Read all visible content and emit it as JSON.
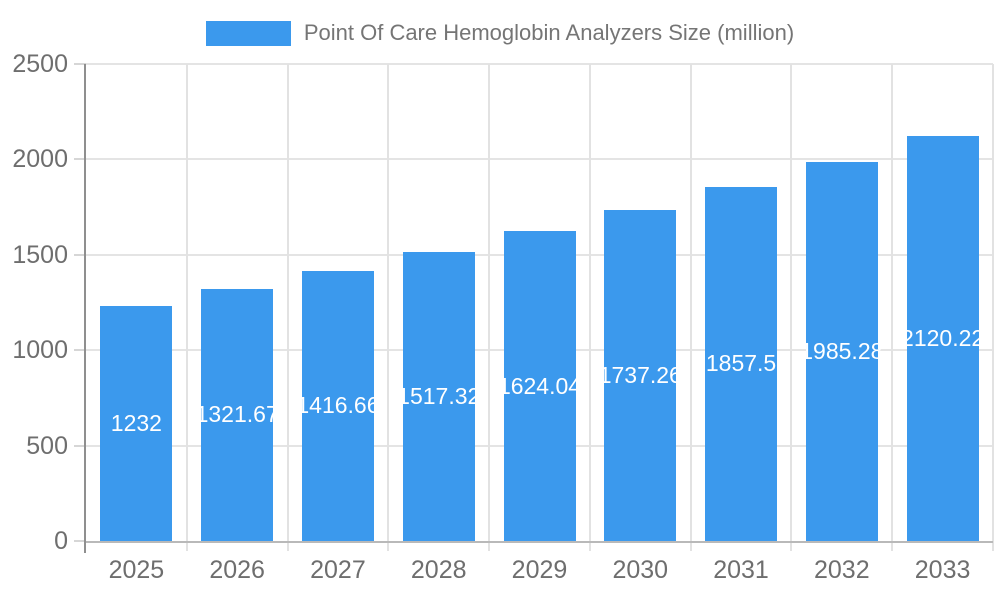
{
  "legend": {
    "label": "Point Of Care Hemoglobin Analyzers Size (million)"
  },
  "chart_data": {
    "type": "bar",
    "title": "Point Of Care Hemoglobin Analyzers Size (million)",
    "categories": [
      "2025",
      "2026",
      "2027",
      "2028",
      "2029",
      "2030",
      "2031",
      "2032",
      "2033"
    ],
    "values": [
      1232,
      1321.67,
      1416.66,
      1517.32,
      1624.04,
      1737.26,
      1857.5,
      1985.28,
      2120.22
    ],
    "bar_labels": [
      "1232",
      "1321.67",
      "1416.66",
      "1517.32",
      "1624.04",
      "1737.26",
      "1857.5",
      "1985.28",
      "2120.22"
    ],
    "xlabel": "",
    "ylabel": "",
    "ylim": [
      0,
      2500
    ],
    "yticks": [
      0,
      500,
      1000,
      1500,
      2000,
      2500
    ],
    "grid": true,
    "legend_position": "top-center",
    "colors": {
      "bar": "#3b99ed",
      "bar_value_text": "#ffffff",
      "legend_text": "#757575",
      "axis_label_text": "#6e6e6e",
      "gridline": "#e4e4e4",
      "y_axis_line": "#8f8f8f",
      "x_axis_line": "#b9b9b9",
      "background": "#ffffff"
    }
  }
}
